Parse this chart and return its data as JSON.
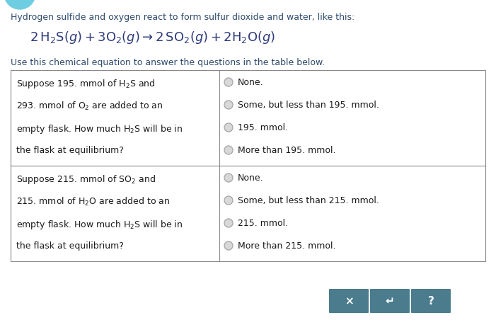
{
  "bg_color": "#ffffff",
  "header_text": "Hydrogen sulfide and oxygen react to form sulfur dioxide and water, like this:",
  "header_color": "#2e4a6e",
  "eq_color": "#2e3a7a",
  "subheader": "Use this chemical equation to answer the questions in the table below.",
  "subheader_color": "#2e4a6e",
  "table_border_color": "#888888",
  "row1_left_texts": [
    "Suppose 195. mmol of H$_2$S and",
    "293. mmol of O$_2$ are added to an",
    "empty flask. How much H$_2$S will be in",
    "the flask at equilibrium?"
  ],
  "row1_right_options": [
    "None.",
    "Some, but less than 195. mmol.",
    "195. mmol.",
    "More than 195. mmol."
  ],
  "row2_left_texts": [
    "Suppose 215. mmol of SO$_2$ and",
    "215. mmol of H$_2$O are added to an",
    "empty flask. How much H$_2$S will be in",
    "the flask at equilibrium?"
  ],
  "row2_right_options": [
    "None.",
    "Some, but less than 215. mmol.",
    "215. mmol.",
    "More than 215. mmol."
  ],
  "button_bg": "#4a7c8e",
  "button_fg": "#ffffff",
  "button_labels": [
    "×",
    "↵",
    "?"
  ],
  "font_size_header": 9.0,
  "font_size_equation": 13,
  "font_size_subheader": 9.0,
  "font_size_table": 9.0,
  "radio_color_fill": "#d8d8d8",
  "radio_color_edge": "#aaaaaa",
  "teal_circle_color": "#6ecde0",
  "text_color": "#1a1a1a"
}
